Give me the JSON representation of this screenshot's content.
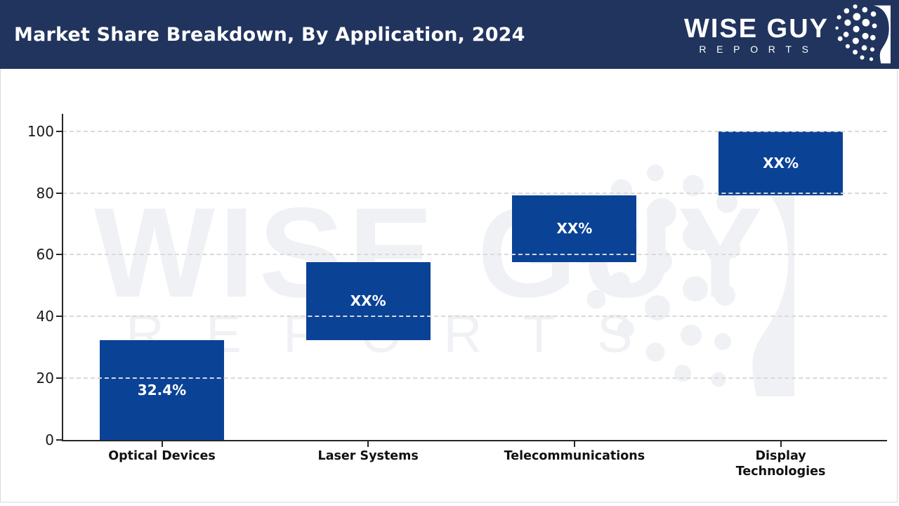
{
  "header": {
    "title": "Market Share Breakdown, By Application, 2024",
    "bg_color": "#20345E",
    "logo": {
      "line1": "WISE GUY",
      "line2": "REPORTS"
    }
  },
  "watermark": {
    "line1": "WISE GUY",
    "line2": "REPORTS"
  },
  "chart_data": {
    "type": "bar",
    "subtype": "waterfall",
    "title": "Market Share Breakdown, By Application, 2024",
    "categories": [
      "Optical Devices",
      "Laser Systems",
      "Telecommunications",
      "Display\nTechnologies"
    ],
    "segments": [
      {
        "category": "Optical Devices",
        "start": 0,
        "end": 32.4,
        "label": "32.4%"
      },
      {
        "category": "Laser Systems",
        "start": 32.4,
        "end": 57.7,
        "label": "XX%"
      },
      {
        "category": "Telecommunications",
        "start": 57.7,
        "end": 79.2,
        "label": "XX%"
      },
      {
        "category": "Display Technologies",
        "start": 79.2,
        "end": 100,
        "label": "XX%"
      }
    ],
    "xlabel": "",
    "ylabel": "",
    "ylim": [
      0,
      100
    ],
    "yticks": [
      0,
      20,
      40,
      60,
      80,
      100
    ],
    "grid": "horizontal-dashed",
    "legend": "none",
    "bar_color": "#0A4296",
    "bar_label_color": "#FFFFFF",
    "grid_color": "#D9D9D9",
    "axis_color": "#262626",
    "watermark_color": "#F0F1F4"
  }
}
